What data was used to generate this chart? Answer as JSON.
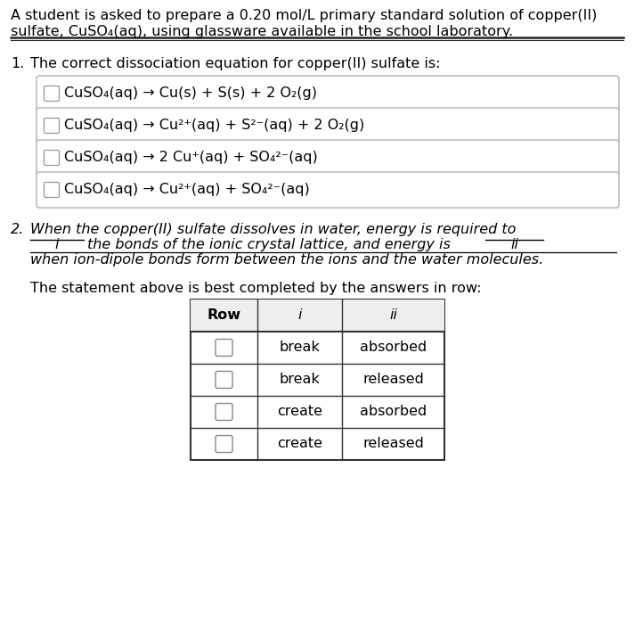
{
  "bg_color": "#ffffff",
  "text_color": "#000000",
  "header_line1": "A student is asked to prepare a 0.20 mol/L primary standard solution of copper(II)",
  "header_line2": "sulfate, CuSO₄(aq), using glassware available in the school laboratory.",
  "q1_label": "1.",
  "q1_text": "The correct dissociation equation for copper(II) sulfate is:",
  "q1_options": [
    "CuSO₄(aq) → Cu(s) + S(s) + 2 O₂(g)",
    "CuSO₄(aq) → Cu²⁺(aq) + S²⁻(aq) + 2 O₂(g)",
    "CuSO₄(aq) → 2 Cu⁺(aq) + SO₄²⁻(aq)",
    "CuSO₄(aq) → Cu²⁺(aq) + SO₄²⁻(aq)"
  ],
  "q2_label": "2.",
  "q2_line1": "When the copper(II) sulfate dissolves in water, energy is required to",
  "q2_line2_i": "i",
  "q2_line2_mid": "the bonds of the ionic crystal lattice, and energy is",
  "q2_line2_ii": "ii",
  "q2_line3": "when ion-dipole bonds form between the ions and the water molecules.",
  "q2_stmt": "The statement above is best completed by the answers in row:",
  "table_headers": [
    "Row",
    "i",
    "ii"
  ],
  "table_data": [
    [
      "break",
      "absorbed"
    ],
    [
      "break",
      "released"
    ],
    [
      "create",
      "absorbed"
    ],
    [
      "create",
      "released"
    ]
  ],
  "fs_main": 11.5,
  "fs_table": 11.5
}
